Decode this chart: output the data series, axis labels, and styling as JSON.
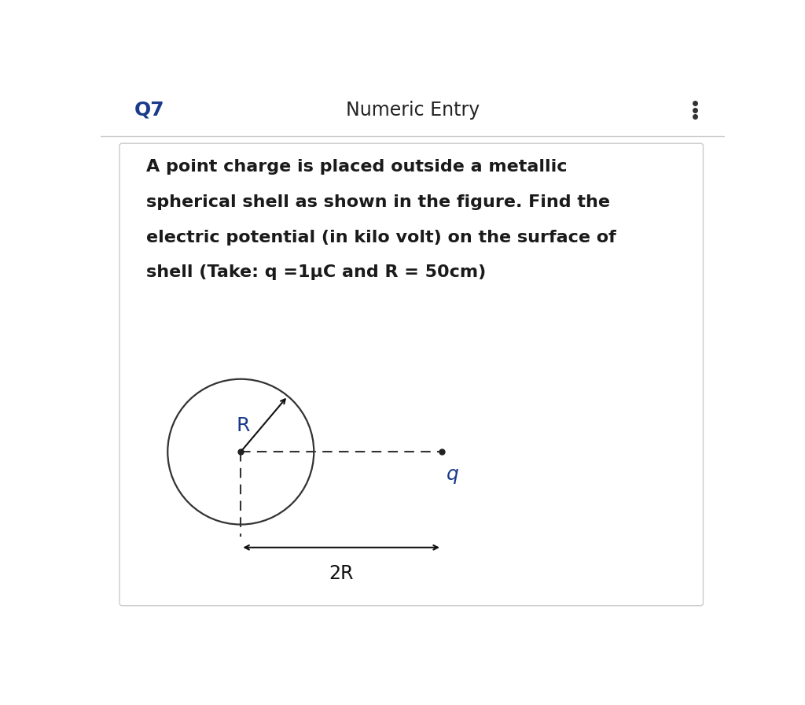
{
  "background_color": "#ffffff",
  "q_label": "Q7",
  "q_label_color": "#1a3a8c",
  "q_label_fontsize": 18,
  "numeric_entry_text": "Numeric Entry",
  "numeric_entry_fontsize": 17,
  "three_dots_color": "#333333",
  "body_text_lines": [
    "A point charge is placed outside a metallic",
    "spherical shell as shown in the figure. Find the",
    "electric potential (in kilo volt) on the surface of",
    "shell (Take: q =1μC and R = 50cm)"
  ],
  "body_text_fontsize": 16,
  "body_text_color": "#1a1a1a",
  "circle_color": "#333333",
  "circle_linewidth": 1.6,
  "R_label_color": "#1a3a8c",
  "R_label_fontsize": 18,
  "arrow_color": "#111111",
  "dashed_line_color": "#333333",
  "q_label_diagram_color": "#1a3a8c",
  "q_label_diagram_fontsize": 18,
  "twor_label_color": "#111111",
  "twor_label_fontsize": 17,
  "card_outline_color": "#cccccc",
  "card_linewidth": 1.0
}
